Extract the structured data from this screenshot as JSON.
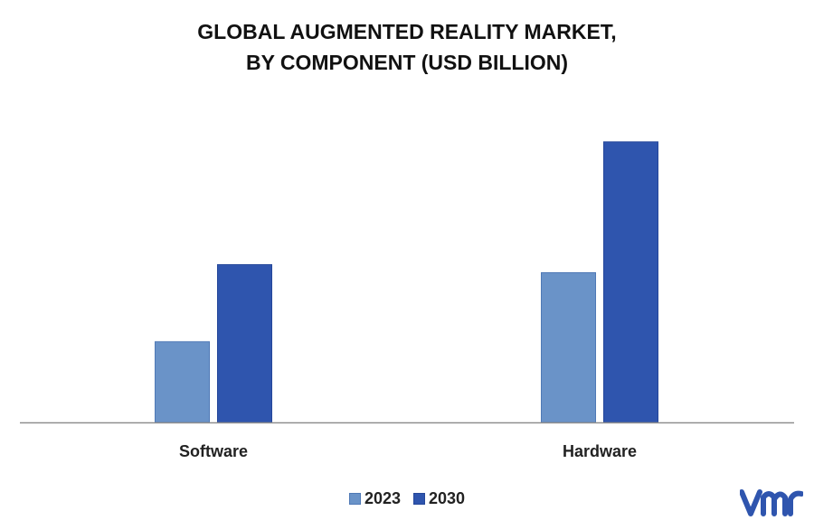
{
  "chart_data": {
    "type": "bar",
    "title": [
      "GLOBAL AUGMENTED REALITY MARKET,",
      "BY COMPONENT (USD BILLION)"
    ],
    "categories": [
      "Software",
      "Hardware"
    ],
    "series": [
      {
        "name": "2023",
        "values": [
          90,
          167
        ],
        "color": "#6a93c8"
      },
      {
        "name": "2030",
        "values": [
          176,
          313
        ],
        "color": "#2f55ae"
      }
    ],
    "ylim": [
      0,
      330
    ],
    "grid": false,
    "legend_position": "bottom-center",
    "xlabel": "",
    "ylabel": ""
  },
  "branding": {
    "logo": "vmr-logo",
    "logo_color": "#2f55ae"
  }
}
